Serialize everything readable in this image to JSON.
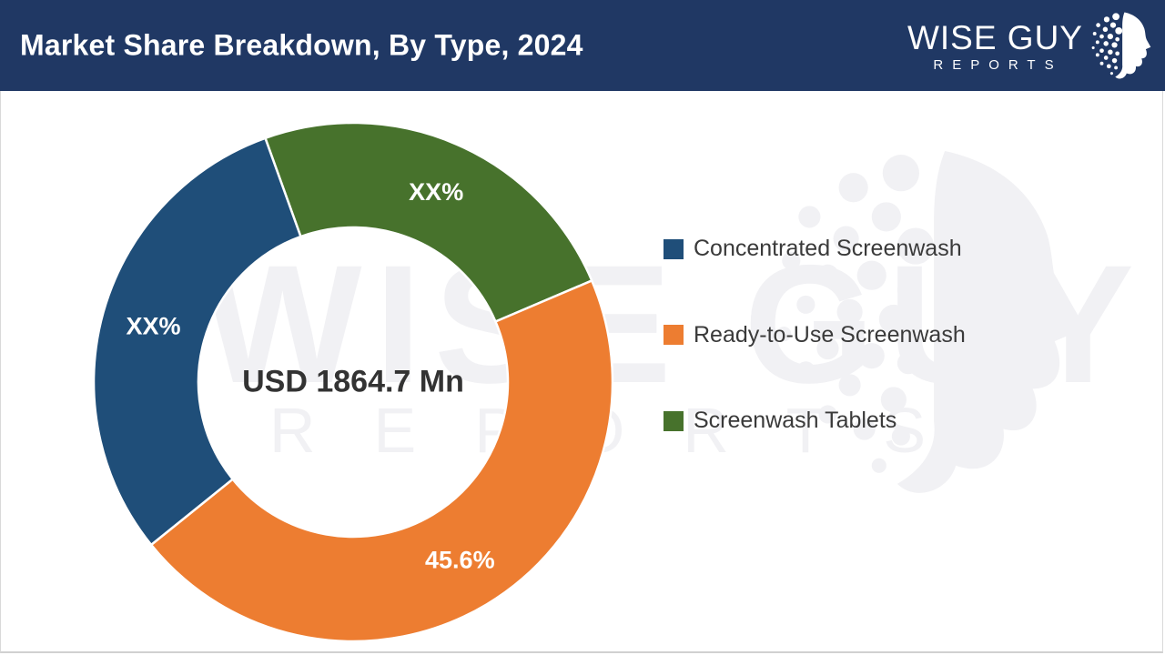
{
  "header": {
    "title": "Market Share Breakdown, By Type, 2024",
    "background_color": "#203864",
    "logo": {
      "brand_top": "WISE GUY",
      "brand_bottom": "REPORTS",
      "face_icon": "dotted-head-profile-icon"
    }
  },
  "watermark": {
    "line1": "WISE GUY",
    "line2": "REPORTS",
    "color": "#f1f1f4"
  },
  "chart_data": {
    "type": "pie",
    "subtype": "donut",
    "title": "Market Share Breakdown, By Type, 2024",
    "center_label": "USD 1864.7 Mn",
    "start_angle_deg": -19.8,
    "legend_position": "right",
    "series": [
      {
        "name": "Screenwash Tablets",
        "label": "XX%",
        "value_pct_shown": "XX",
        "value_pct_est": 24.1,
        "color": "#47722C"
      },
      {
        "name": "Ready-to-Use Screenwash",
        "label": "45.6%",
        "value_pct_shown": "45.6",
        "value_pct_est": 45.6,
        "color": "#ED7D31"
      },
      {
        "name": "Concentrated Screenwash",
        "label": "XX%",
        "value_pct_shown": "XX",
        "value_pct_est": 30.3,
        "color": "#1F4E79"
      }
    ],
    "legend": [
      {
        "label": "Concentrated Screenwash",
        "color": "#1F4E79"
      },
      {
        "label": "Ready-to-Use Screenwash",
        "color": "#ED7D31"
      },
      {
        "label": "Screenwash Tablets",
        "color": "#47722C"
      }
    ]
  }
}
